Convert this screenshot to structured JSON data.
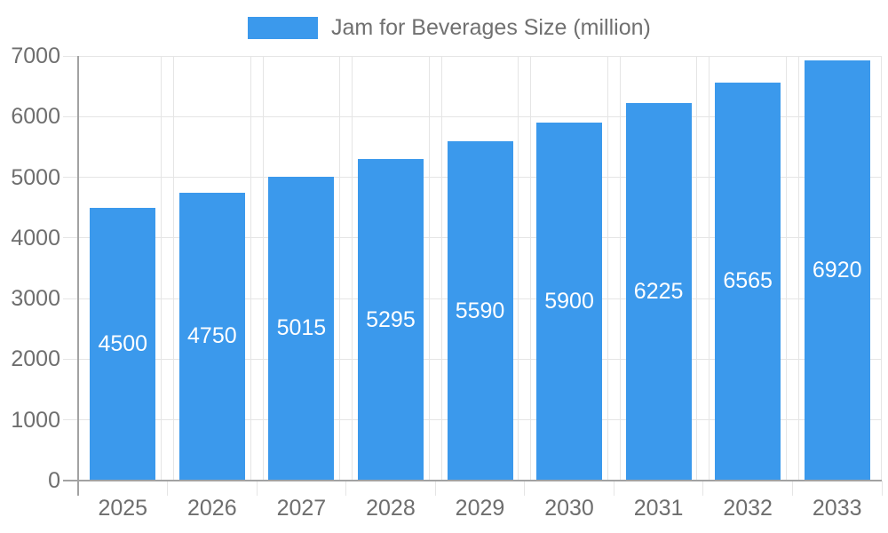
{
  "chart_data": {
    "type": "bar",
    "title": "Jam for Beverages Size (million)",
    "legend": {
      "position": "top",
      "entries": [
        {
          "label": "Jam for Beverages Size (million)",
          "color": "#3b99ec"
        }
      ]
    },
    "categories": [
      "2025",
      "2026",
      "2027",
      "2028",
      "2029",
      "2030",
      "2031",
      "2032",
      "2033"
    ],
    "series": [
      {
        "name": "Jam for Beverages Size (million)",
        "values": [
          4500,
          4750,
          5015,
          5295,
          5590,
          5900,
          6225,
          6565,
          6920
        ]
      }
    ],
    "value_labels_shown": true,
    "xlabel": "",
    "ylabel": "",
    "ylim": [
      0,
      7000
    ],
    "yticks": [
      0,
      1000,
      2000,
      3000,
      4000,
      5000,
      6000,
      7000
    ],
    "grid": true,
    "colors": {
      "bar": "#3b99ec",
      "grid": "#e5e5e5",
      "axis": "#a2a2a2",
      "tick_text": "#6e6e6e",
      "legend_text": "#707070",
      "value_label": "#ffffff",
      "background": "#ffffff"
    }
  }
}
